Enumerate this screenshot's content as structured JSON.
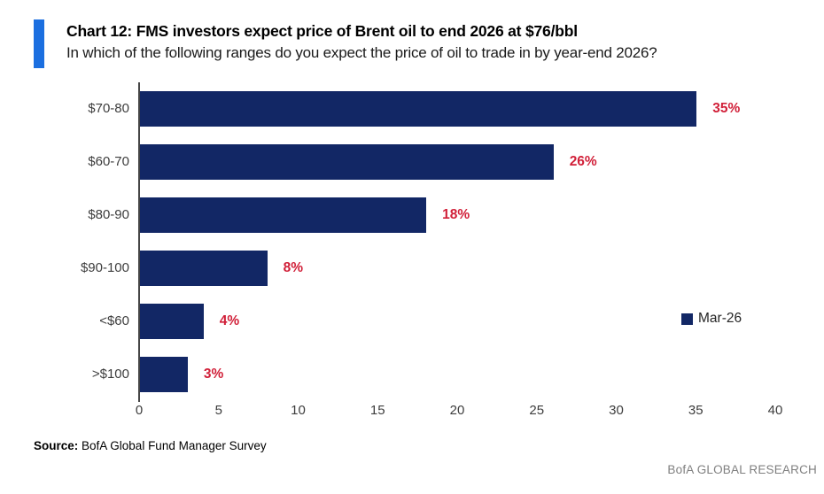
{
  "header": {
    "title": "Chart 12: FMS investors expect price of Brent oil to end 2026 at $76/bbl",
    "subtitle": "In which of the following ranges do you expect the price of oil to trade in by year-end 2026?",
    "accent_color": "#1b6fe0"
  },
  "chart_data": {
    "type": "bar",
    "orientation": "horizontal",
    "title": "Chart 12: FMS investors expect price of Brent oil to end 2026 at $76/bbl",
    "subtitle": "In which of the following ranges do you expect the price of oil to trade in by year-end 2026?",
    "categories": [
      "$70-80",
      "$60-70",
      "$80-90",
      "$90-100",
      "<$60",
      ">$100"
    ],
    "series": [
      {
        "name": "Mar-26",
        "values": [
          35,
          26,
          18,
          8,
          4,
          3
        ]
      }
    ],
    "value_labels": [
      "35%",
      "26%",
      "18%",
      "8%",
      "4%",
      "3%"
    ],
    "x_ticks": [
      "0",
      "5",
      "10",
      "15",
      "20",
      "25",
      "30",
      "35",
      "40"
    ],
    "xlim": [
      0,
      40
    ],
    "grid": false,
    "legend_position": "right",
    "bar_color": "#122765",
    "value_label_color": "#d12039",
    "legend": {
      "label": "Mar-26"
    }
  },
  "footer": {
    "source_label": "Source:",
    "source_text": " BofA Global Fund Manager Survey",
    "branding": "BofA GLOBAL RESEARCH"
  }
}
